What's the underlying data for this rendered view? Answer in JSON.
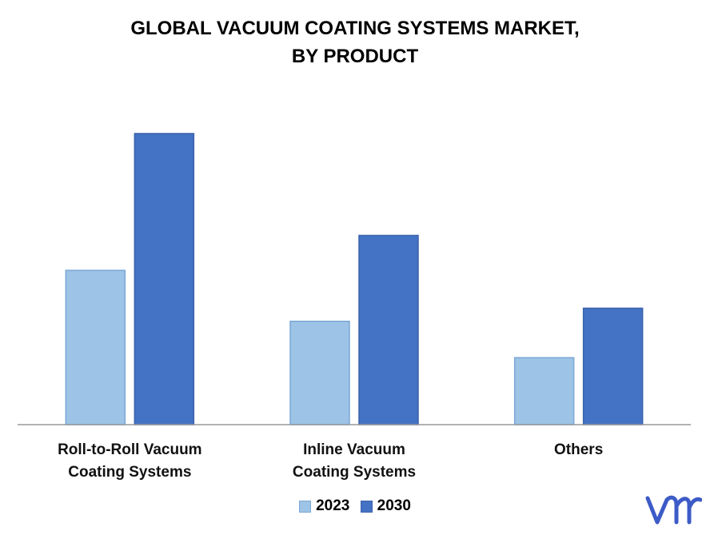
{
  "title_line1": "GLOBAL VACUUM COATING SYSTEMS MARKET,",
  "title_line2": "BY PRODUCT",
  "colors": {
    "s2023": "#9dc3e6",
    "s2030": "#4472c4",
    "s2023_stroke": "#7aa7d6",
    "s2030_stroke": "#3a62ab",
    "axis": "#999999",
    "logo": "#3d5bc7"
  },
  "chart_data": {
    "type": "bar",
    "categories": [
      "Roll-to-Roll Vacuum Coating Systems",
      "Inline Vacuum Coating Systems",
      "Others"
    ],
    "category_label_lines": [
      [
        "Roll-to-Roll Vacuum",
        "Coating Systems"
      ],
      [
        "Inline Vacuum",
        "Coating Systems"
      ],
      [
        "Others"
      ]
    ],
    "series": [
      {
        "name": "2023",
        "values": [
          53,
          35.5,
          23
        ]
      },
      {
        "name": "2030",
        "values": [
          100,
          65,
          40
        ]
      }
    ],
    "ylim": [
      0,
      100
    ],
    "grid": false,
    "legend": "bottom-center",
    "xlabel": "",
    "ylabel": ""
  },
  "legend": {
    "item1": "2023",
    "item2": "2030"
  },
  "logo": {
    "icon": "vmr-logo"
  }
}
